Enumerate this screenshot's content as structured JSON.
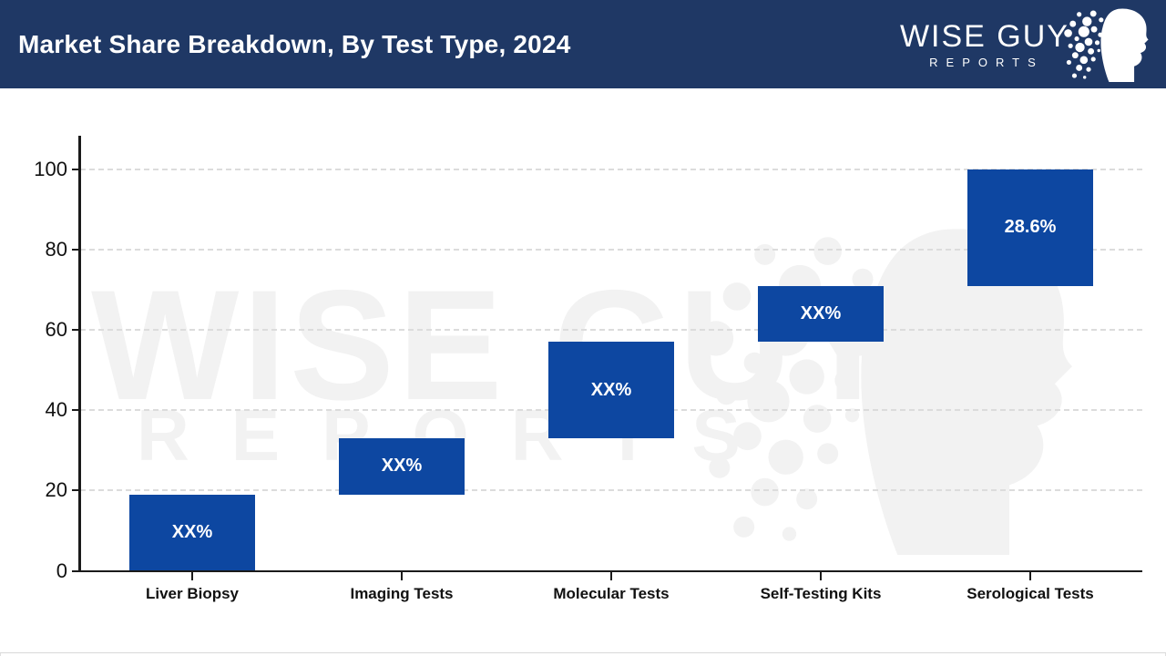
{
  "header": {
    "title": "Market Share Breakdown, By Test Type, 2024",
    "bg_color": "#1f3865",
    "logo": {
      "line1": "WISE GUY",
      "line2": "REPORTS"
    }
  },
  "watermark": {
    "line1": "WISE GUY",
    "line2": "REPORTS"
  },
  "chart_data": {
    "type": "bar",
    "subtype": "waterfall",
    "title": "Market Share Breakdown, By Test Type, 2024",
    "xlabel": "",
    "ylabel": "",
    "categories": [
      "Liver Biopsy",
      "Imaging Tests",
      "Molecular Tests",
      "Self-Testing Kits",
      "Serological Tests"
    ],
    "segments": [
      {
        "category": "Liver Biopsy",
        "start": 0,
        "end": 19,
        "label": "XX%"
      },
      {
        "category": "Imaging Tests",
        "start": 19,
        "end": 33,
        "label": "XX%"
      },
      {
        "category": "Molecular Tests",
        "start": 33,
        "end": 57,
        "label": "XX%"
      },
      {
        "category": "Self-Testing Kits",
        "start": 57,
        "end": 71,
        "label": "XX%"
      },
      {
        "category": "Serological Tests",
        "start": 71,
        "end": 100,
        "label": "28.6%"
      }
    ],
    "y_ticks": [
      0,
      20,
      40,
      60,
      80,
      100
    ],
    "ylim": [
      0,
      100
    ],
    "grid": "horizontal dashed",
    "legend": "none",
    "bar_color": "#0d47a1",
    "bar_label_color": "#ffffff"
  }
}
